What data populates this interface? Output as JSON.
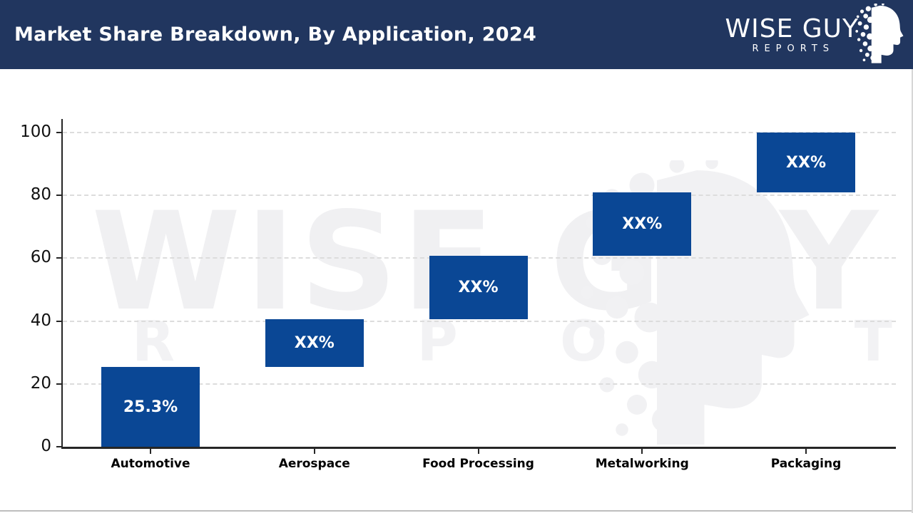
{
  "header": {
    "title": "Market Share Breakdown, By Application, 2024",
    "bg_color": "#21365f",
    "logo": {
      "line1": "WISE GUY",
      "line2": "REPORTS"
    }
  },
  "watermark": {
    "line1": "WISE GUY",
    "line2": "R E P O R T S"
  },
  "chart_data": {
    "type": "bar",
    "subtype": "waterfall",
    "title": "Market Share Breakdown, By Application, 2024",
    "categories": [
      "Automotive",
      "Aerospace",
      "Food Processing",
      "Metalworking",
      "Packaging"
    ],
    "segments": [
      {
        "category": "Automotive",
        "start": 0,
        "end": 25.3,
        "label": "25.3%"
      },
      {
        "category": "Aerospace",
        "start": 25.3,
        "end": 40.5,
        "label": "XX%"
      },
      {
        "category": "Food Processing",
        "start": 40.5,
        "end": 60.7,
        "label": "XX%"
      },
      {
        "category": "Metalworking",
        "start": 60.7,
        "end": 80.9,
        "label": "XX%"
      },
      {
        "category": "Packaging",
        "start": 80.9,
        "end": 100,
        "label": "XX%"
      }
    ],
    "xlabel": "",
    "ylabel": "",
    "ylim": [
      0,
      105
    ],
    "yticks": [
      0,
      20,
      40,
      60,
      80,
      100
    ],
    "grid": "horizontal-dashed",
    "legend": "none",
    "bar_color": "#0a4795",
    "bar_label_color": "#ffffff"
  }
}
